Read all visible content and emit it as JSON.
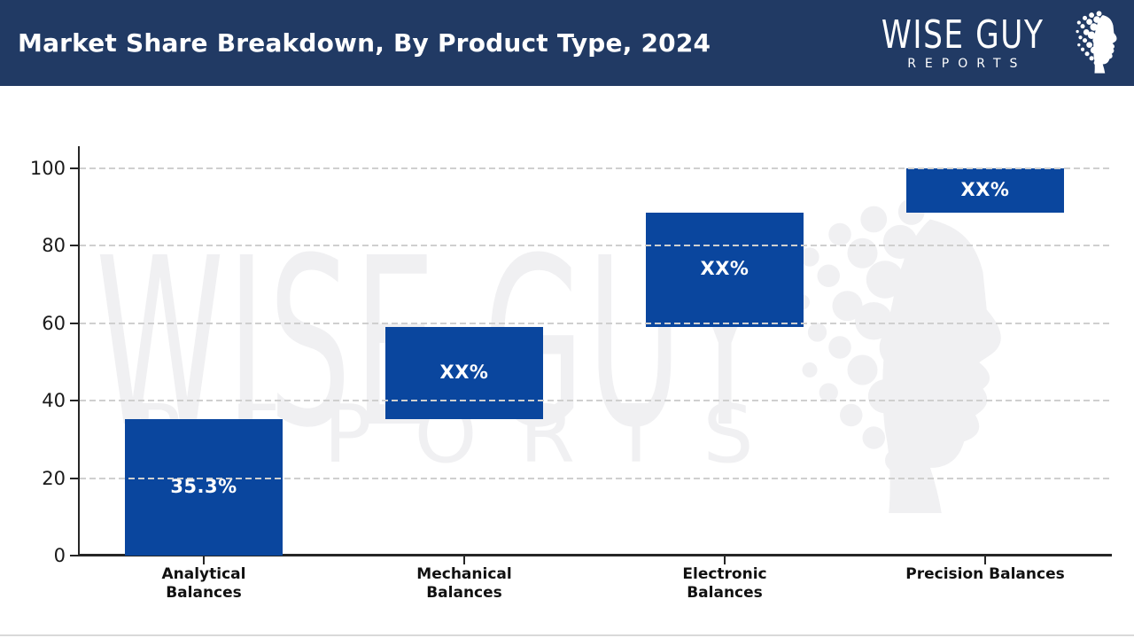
{
  "header": {
    "title": "Market Share Breakdown, By Product Type, 2024",
    "logo": {
      "wordmark": "WISE GUY",
      "subtext": "REPORTS"
    }
  },
  "watermark": {
    "wordmark": "WISE GUY",
    "subtext": "REPORTS"
  },
  "colors": {
    "header_bg": "#213a64",
    "bar": "#0a469e",
    "grid": "#cfcfcf",
    "axis": "#262626",
    "watermark": "#f0f0f2"
  },
  "chart_data": {
    "type": "bar",
    "subtype": "waterfall",
    "title": "Market Share Breakdown, By Product Type, 2024",
    "categories": [
      [
        "Analytical",
        "Balances"
      ],
      [
        "Mechanical",
        "Balances"
      ],
      [
        "Electronic",
        "Balances"
      ],
      [
        "Precision Balances"
      ]
    ],
    "segments": [
      {
        "name": "Analytical Balances",
        "start": 0,
        "end": 35.3,
        "label": "35.3%"
      },
      {
        "name": "Mechanical Balances",
        "start": 35.3,
        "end": 59,
        "label": "XX%"
      },
      {
        "name": "Electronic Balances",
        "start": 59,
        "end": 88.5,
        "label": "XX%"
      },
      {
        "name": "Precision Balances",
        "start": 88.5,
        "end": 100,
        "label": "XX%"
      }
    ],
    "yticks": [
      0,
      20,
      40,
      60,
      80,
      100
    ],
    "ylim": [
      0,
      105.6
    ],
    "xlabel": "",
    "ylabel": "",
    "grid": {
      "axis": "y",
      "style": "dashed",
      "drawn_on_top": true
    },
    "legend": null
  }
}
